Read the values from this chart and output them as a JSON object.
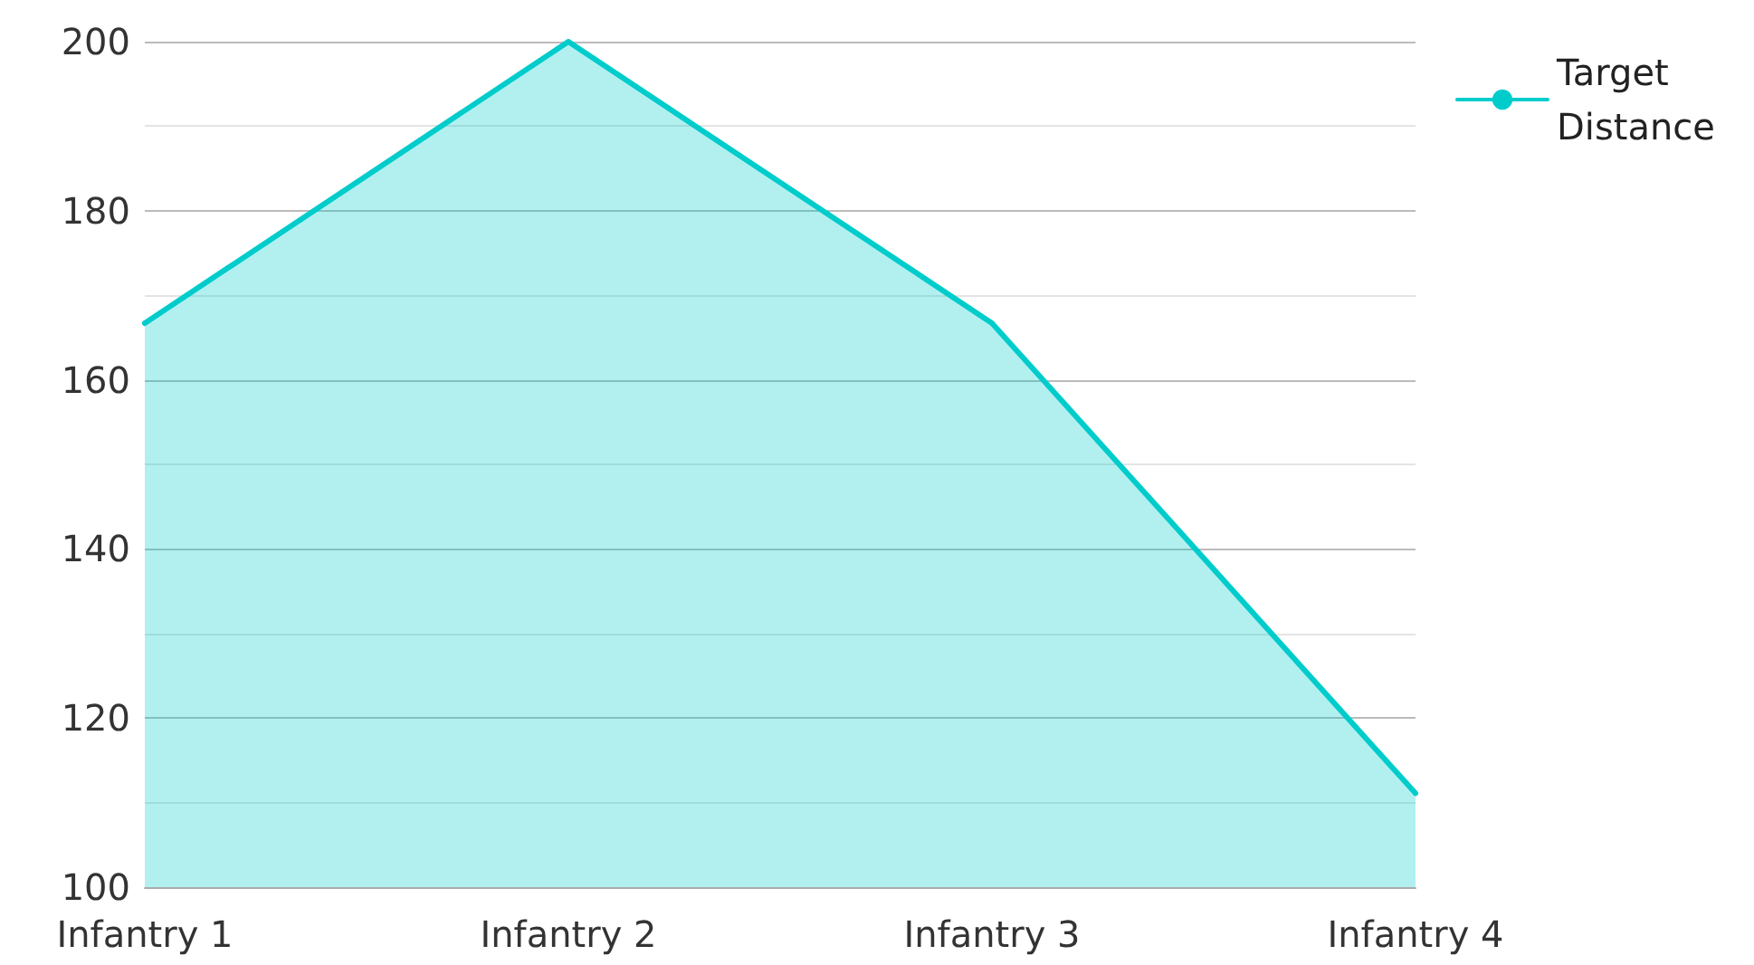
{
  "chart_data": {
    "type": "area",
    "categories": [
      "Infantry 1",
      "Infantry 2",
      "Infantry 3",
      "Infantry 4"
    ],
    "series": [
      {
        "name": "Target Distance",
        "color": "#00cccc",
        "values": [
          166.7,
          200,
          166.7,
          111.1
        ]
      }
    ],
    "ylim": [
      100,
      200
    ],
    "yticks": [
      100,
      120,
      140,
      160,
      180,
      200
    ],
    "grid": "y",
    "legend": "top right",
    "marker": "none",
    "line_style": "solid"
  }
}
